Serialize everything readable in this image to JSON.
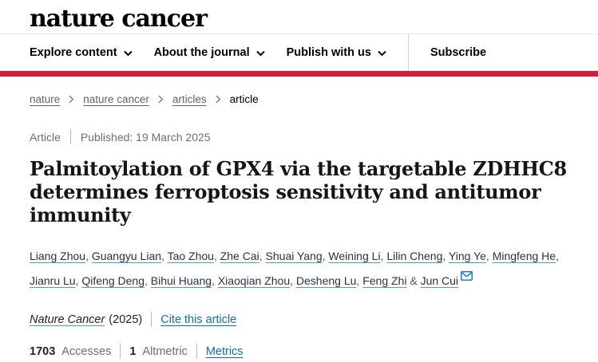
{
  "header": {
    "logo_text": "nature cancer",
    "nav_items": [
      {
        "id": "explore-content",
        "label": "Explore content",
        "dropdown": true,
        "divider_before": false
      },
      {
        "id": "about-the-journal",
        "label": "About the journal",
        "dropdown": true,
        "divider_before": false
      },
      {
        "id": "publish-with-us",
        "label": "Publish with us",
        "dropdown": true,
        "divider_before": false
      },
      {
        "id": "subscribe",
        "label": "Subscribe",
        "dropdown": false,
        "divider_before": true
      }
    ]
  },
  "breadcrumb": [
    {
      "label": "nature",
      "is_link": true
    },
    {
      "label": "nature cancer",
      "is_link": true
    },
    {
      "label": "articles",
      "is_link": true
    },
    {
      "label": "article",
      "is_link": false
    }
  ],
  "article": {
    "type_label": "Article",
    "published_text": "Published: 19 March 2025",
    "title": "Palmitoylation of GPX4 via the targetable ZDHHC8 determines ferroptosis sensitivity and antitumor immunity",
    "authors": [
      "Liang Zhou",
      "Guangyu Lian",
      "Tao Zhou",
      "Zhe Cai",
      "Shuai Yang",
      "Weining Li",
      "Lilin Cheng",
      "Ying Ye",
      "Mingfeng He",
      "Jianru Lu",
      "Qifeng Deng",
      "Bihui Huang",
      "Xiaoqian Zhou",
      "Desheng Lu",
      "Feng Zhi",
      "Jun Cui"
    ],
    "corresponding_author": "Jun Cui"
  },
  "citation": {
    "journal_name": "Nature Cancer",
    "year_text": "(2025)",
    "cite_link_label": "Cite this article"
  },
  "metrics": {
    "accesses_value": "1703",
    "accesses_label": "Accesses",
    "altmetric_value": "1",
    "altmetric_label": "Altmetric",
    "metrics_link_label": "Metrics"
  },
  "icons": {
    "nav_dropdown": "chevron-down-icon",
    "breadcrumb_separator": "chevron-right-icon",
    "email": "envelope-icon"
  },
  "colors": {
    "brand_red": "#e0173b",
    "link_blue": "#0b71b5",
    "author_underline_blue": "#4c9bd6",
    "text_dark": "#222222",
    "text_gray": "#6f6f6f"
  }
}
